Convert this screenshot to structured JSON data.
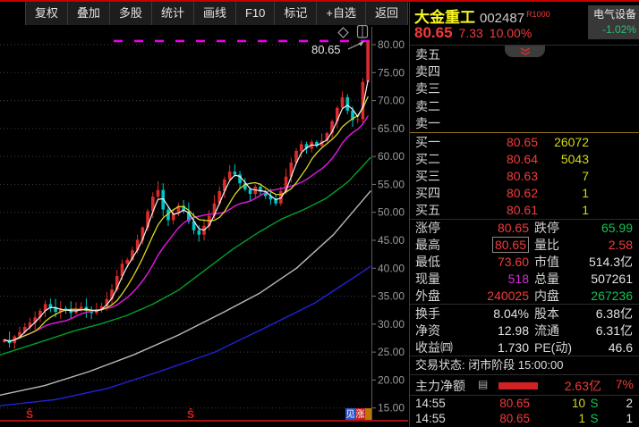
{
  "toolbar": {
    "items": [
      "复权",
      "叠加",
      "多股",
      "统计",
      "画线",
      "F10",
      "标记",
      "+自选",
      "返回"
    ]
  },
  "header": {
    "name": "大金重工",
    "code": "002487",
    "tag": "R1000",
    "price": "80.65",
    "change": "7.33",
    "change_pct": "10.00%",
    "industry": "电气设备",
    "industry_pct": "-1.02%"
  },
  "order_book": {
    "sell_labels": [
      "卖五",
      "卖四",
      "卖三",
      "卖二",
      "卖一"
    ],
    "buy_rows": [
      [
        "买一",
        "80.65",
        "26072"
      ],
      [
        "买二",
        "80.64",
        "5043"
      ],
      [
        "买三",
        "80.63",
        "7"
      ],
      [
        "买四",
        "80.62",
        "1"
      ],
      [
        "买五",
        "80.61",
        "1"
      ]
    ]
  },
  "stats1": [
    [
      "涨停",
      "80.65",
      "red",
      false,
      "跌停",
      "65.99",
      "green"
    ],
    [
      "最高",
      "80.65",
      "red",
      true,
      "量比",
      "2.58",
      "red"
    ],
    [
      "最低",
      "73.60",
      "red",
      false,
      "市值",
      "514.3亿",
      "wht"
    ],
    [
      "现量",
      "518",
      "mag",
      false,
      "总量",
      "507261",
      "wht"
    ],
    [
      "外盘",
      "240025",
      "red",
      false,
      "内盘",
      "267236",
      "green"
    ]
  ],
  "stats2": [
    [
      "换手",
      "8.04%",
      "wht",
      false,
      "股本",
      "6.38亿",
      "wht"
    ],
    [
      "净资",
      "12.98",
      "wht",
      false,
      "流通",
      "6.31亿",
      "wht"
    ],
    [
      "收益㈣",
      "1.730",
      "wht",
      false,
      "PE(动)",
      "46.6",
      "wht"
    ]
  ],
  "status_line": "交易状态: 闭市阶段 15:00:00",
  "main_net": {
    "label": "主力净额",
    "icon": "▤",
    "value": "2.63亿",
    "pct": "7%"
  },
  "ticks": [
    [
      "14:55",
      "80.65",
      "10",
      "S",
      "2"
    ],
    [
      "14:55",
      "80.65",
      "1",
      "S",
      "1"
    ],
    [
      "14:55",
      "80.65",
      "",
      "",
      ""
    ]
  ],
  "chart_data": {
    "type": "candlestick",
    "title": "大金重工 002487 daily K-line",
    "y_ticks": [
      80,
      75,
      70,
      65,
      60,
      55,
      50,
      45,
      40,
      35,
      30,
      25,
      20,
      15
    ],
    "y_tick_decimals": 2,
    "grid": true,
    "legend_position": "none",
    "limit_line_price": 80.65,
    "annotation": {
      "text": "80.65",
      "price": 80.65
    },
    "candles": {
      "first_open": 26.8,
      "last_high": 80.65,
      "last_low": 73.6,
      "closes": [
        27.2,
        26.6,
        27.8,
        28.6,
        29.5,
        30.3,
        31.2,
        32.4,
        33.6,
        33.0,
        32.2,
        32.8,
        32.5,
        32.0,
        32.6,
        33.1,
        32.4,
        32.0,
        32.7,
        33.2,
        34.5,
        36.2,
        38.6,
        40.8,
        41.5,
        43.2,
        45.1,
        47.3,
        50.2,
        52.8,
        54.0,
        50.5,
        48.6,
        49.8,
        51.2,
        50.2,
        48.4,
        46.8,
        46.0,
        47.6,
        49.4,
        51.6,
        53.8,
        55.9,
        57.3,
        56.8,
        55.2,
        54.1,
        53.3,
        54.6,
        53.7,
        52.9,
        52.3,
        51.6,
        53.8,
        56.4,
        58.9,
        61.0,
        62.2,
        61.4,
        62.6,
        61.9,
        62.8,
        64.2,
        66.3,
        68.7,
        70.6,
        68.2,
        66.5,
        66.65,
        73.32,
        80.65
      ]
    },
    "ma_fast_windows": {
      "white": 3,
      "yellow": 7,
      "magenta": 13
    },
    "ma_lines": [
      {
        "name": "ma-green",
        "color": "#00a02c",
        "points": [
          [
            0,
            24.5
          ],
          [
            0.1,
            26.6
          ],
          [
            0.2,
            28.8
          ],
          [
            0.27,
            30.0
          ],
          [
            0.34,
            31.5
          ],
          [
            0.41,
            33.5
          ],
          [
            0.48,
            36.0
          ],
          [
            0.55,
            39.5
          ],
          [
            0.63,
            43.5
          ],
          [
            0.7,
            46.5
          ],
          [
            0.76,
            48.8
          ],
          [
            0.82,
            50.5
          ],
          [
            0.88,
            52.5
          ],
          [
            0.94,
            55.5
          ],
          [
            1,
            59.8
          ]
        ]
      },
      {
        "name": "ma-gray",
        "color": "#b9b9b9",
        "points": [
          [
            0,
            17.3
          ],
          [
            0.12,
            19.0
          ],
          [
            0.24,
            21.5
          ],
          [
            0.36,
            24.5
          ],
          [
            0.48,
            28.0
          ],
          [
            0.6,
            32.0
          ],
          [
            0.7,
            35.5
          ],
          [
            0.8,
            40.0
          ],
          [
            0.9,
            46.0
          ],
          [
            1,
            53.8
          ]
        ]
      },
      {
        "name": "ma-blue",
        "color": "#2222dd",
        "points": [
          [
            0,
            15.4
          ],
          [
            0.15,
            16.5
          ],
          [
            0.29,
            18.5
          ],
          [
            0.43,
            21.5
          ],
          [
            0.58,
            25.0
          ],
          [
            0.72,
            29.5
          ],
          [
            0.85,
            33.8
          ],
          [
            1,
            40.3
          ]
        ]
      }
    ],
    "colors": {
      "up": "#dd2b2b",
      "down": "#00c6c6",
      "grid": "#3f3f3f",
      "axis_label": "#9c9c9c",
      "limit_line": "#ee00ee",
      "white_ma": "#f2f2f2",
      "yellow_ma": "#d8d820",
      "magenta_ma": "#d818d8"
    },
    "bottom_markers": {
      "s_text": "Ŝ",
      "s_x": [
        33,
        213
      ],
      "badges": [
        {
          "text": "见",
          "bg": "#2b55cc"
        },
        {
          "text": "涨",
          "bg": "#c22222"
        },
        {
          "text": "",
          "bg": "#bb7700"
        }
      ]
    }
  }
}
